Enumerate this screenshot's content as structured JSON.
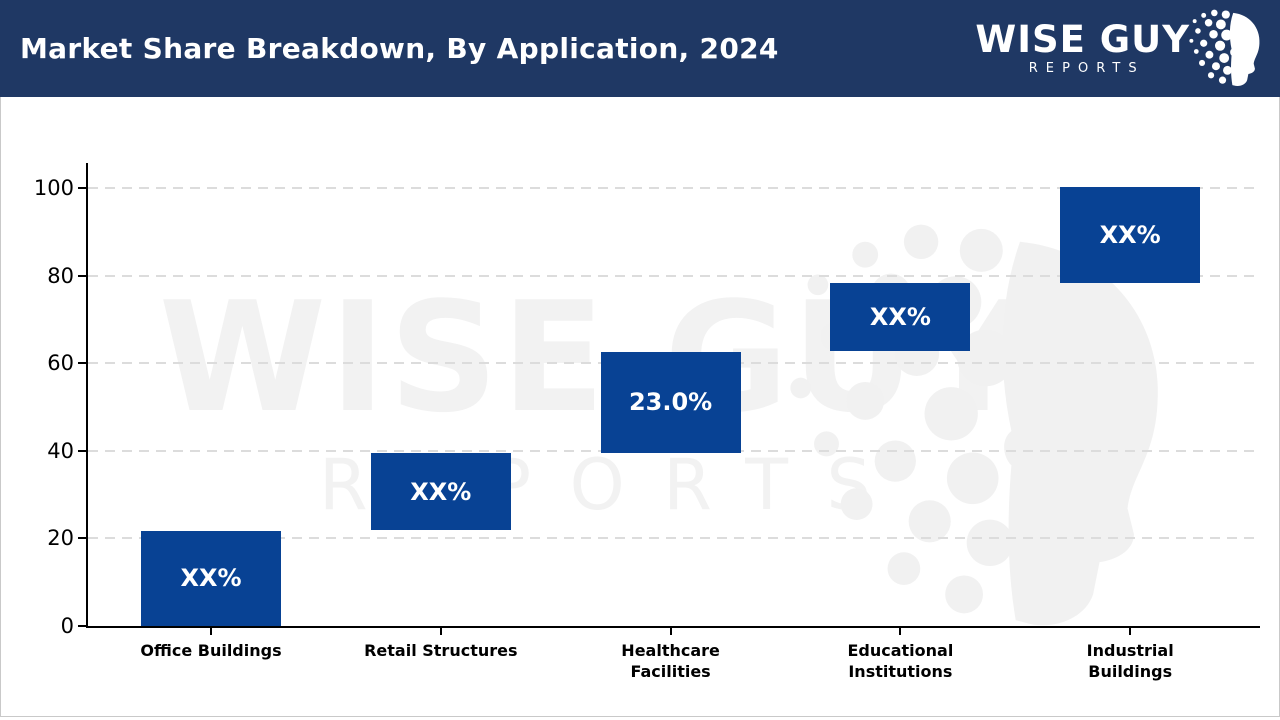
{
  "header": {
    "title": "Market Share Breakdown, By Application, 2024",
    "background_color": "#1f3864",
    "logo": {
      "line1": "WISE GUY",
      "line2": "REPORTS"
    }
  },
  "watermark": {
    "line1": "WISE GUY",
    "line2": "REPORTS"
  },
  "chart_data": {
    "type": "bar",
    "subtype": "waterfall",
    "title": "Market Share Breakdown, By Application, 2024",
    "xlabel": "",
    "ylabel": "",
    "ylim": [
      0,
      105
    ],
    "yticks": [
      0,
      20,
      40,
      60,
      80,
      100
    ],
    "grid": "horizontal-dashed",
    "gridline_color": "#dcdcdc",
    "bar_color": "#084294",
    "bar_label_color": "#ffffff",
    "categories": [
      "Office Buildings",
      "Retail Structures",
      "Healthcare Facilities",
      "Educational Institutions",
      "Industrial Buildings"
    ],
    "category_label_lines": [
      [
        "Office Buildings"
      ],
      [
        "Retail Structures"
      ],
      [
        "Healthcare",
        "Facilities"
      ],
      [
        "Educational",
        "Institutions"
      ],
      [
        "Industrial",
        "Buildings"
      ]
    ],
    "series": [
      {
        "name": "",
        "segments": [
          {
            "category": "Office Buildings",
            "start": 0,
            "end": 21.8,
            "label": "XX%"
          },
          {
            "category": "Retail Structures",
            "start": 21.9,
            "end": 39.5,
            "label": "XX%"
          },
          {
            "category": "Healthcare Facilities",
            "start": 39.6,
            "end": 62.6,
            "label": "23.0%"
          },
          {
            "category": "Educational Institutions",
            "start": 62.8,
            "end": 78.2,
            "label": "XX%"
          },
          {
            "category": "Industrial Buildings",
            "start": 78.3,
            "end": 100.3,
            "label": "XX%"
          }
        ]
      }
    ]
  }
}
